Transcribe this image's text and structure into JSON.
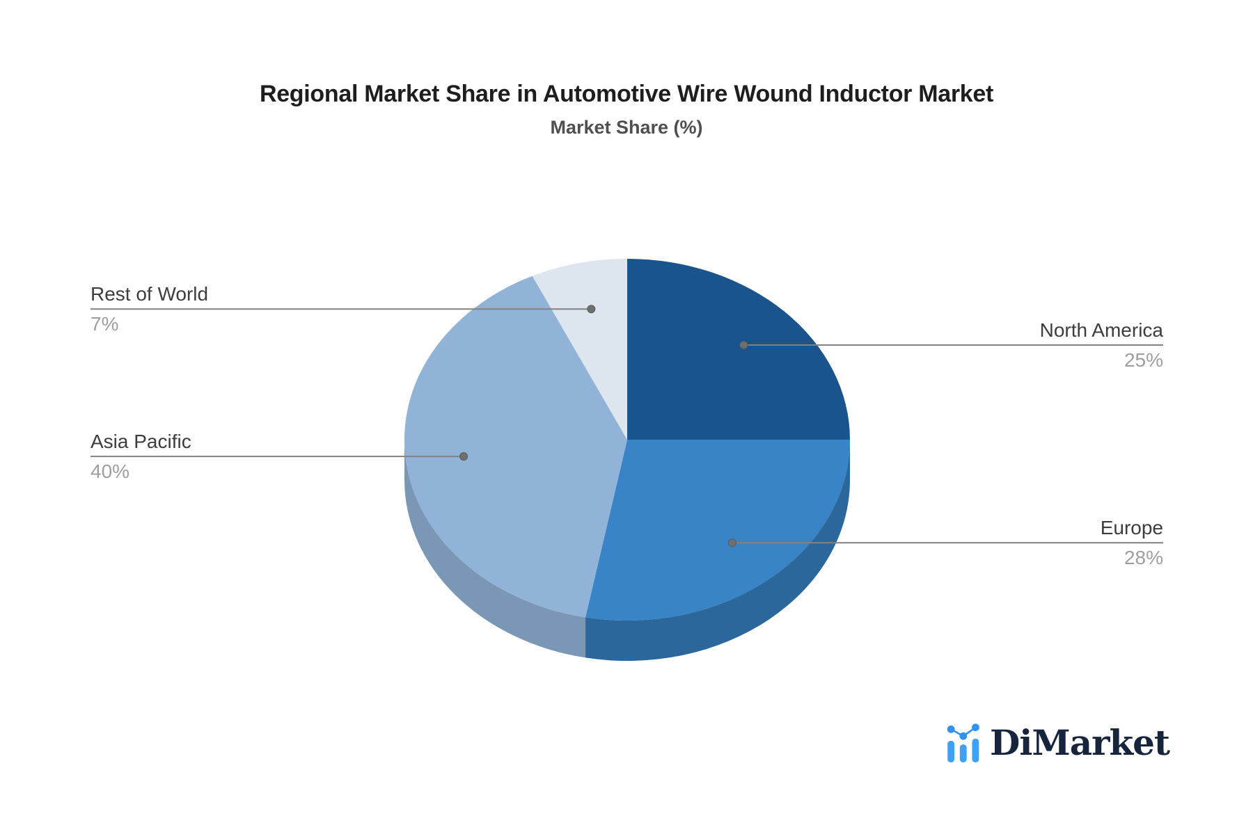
{
  "chart_data": {
    "type": "pie",
    "title": "Regional Market Share in Automotive Wire Wound Inductor Market",
    "subtitle": "Market Share (%)",
    "start_position": "top",
    "direction": "clockwise",
    "style": "3d-extruded",
    "legend_position": "none",
    "categories": [
      "North America",
      "Europe",
      "Asia Pacific",
      "Rest of World"
    ],
    "values": [
      25,
      28,
      40,
      7
    ],
    "slices": [
      {
        "label": "North America",
        "value": 25,
        "pct_label": "25%",
        "color": "#1a548c",
        "rim_color": "#123c66"
      },
      {
        "label": "Europe",
        "value": 28,
        "pct_label": "28%",
        "color": "#3884c6",
        "rim_color": "#2b679b"
      },
      {
        "label": "Asia Pacific",
        "value": 40,
        "pct_label": "40%",
        "color": "#92b3d8",
        "rim_color": "#7b97b6"
      },
      {
        "label": "Rest of World",
        "value": 7,
        "pct_label": "7%",
        "color": "#dde5ef",
        "rim_color": "#b8c4d4"
      }
    ],
    "palette": {
      "leader_line_color": "#828282",
      "leader_dot_color": "#6f6f6f",
      "label_text_color": "#3d3d3d",
      "pct_text_color": "#9e9e9e"
    }
  },
  "logo": {
    "text": "DiMarket",
    "icon": "bar-line-chart-icon",
    "icon_color": "#3da1f8",
    "text_color": "#16243c"
  }
}
